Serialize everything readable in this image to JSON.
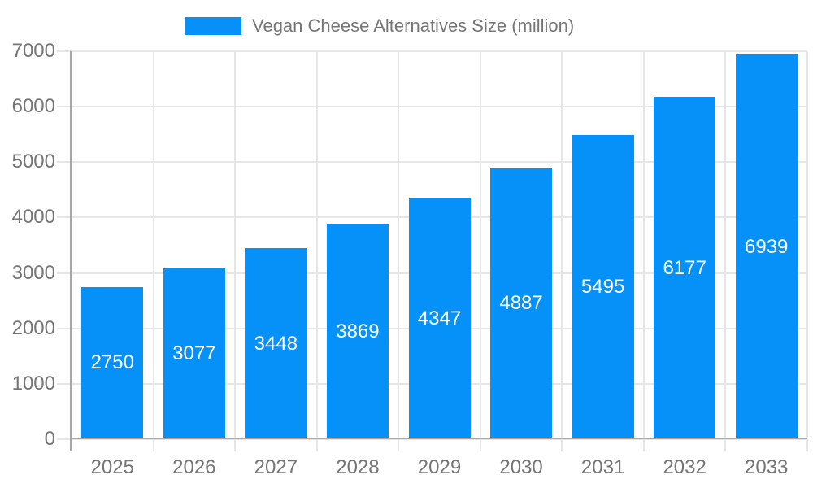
{
  "chart_data": {
    "type": "bar",
    "title": "Vegan Cheese Alternatives Size (million)",
    "categories": [
      "2025",
      "2026",
      "2027",
      "2028",
      "2029",
      "2030",
      "2031",
      "2032",
      "2033"
    ],
    "values": [
      2750,
      3077,
      3448,
      3869,
      4347,
      4887,
      5495,
      6177,
      6939
    ],
    "xlabel": "",
    "ylabel": "",
    "ylim": [
      0,
      7000
    ],
    "ytick_step": 1000,
    "yticks": [
      "0",
      "1000",
      "2000",
      "3000",
      "4000",
      "5000",
      "6000",
      "7000"
    ],
    "grid": true,
    "legend_position": "top",
    "bar_labels_visible": true,
    "colors": {
      "bar": "#0591f8",
      "bar_label": "#ffffff",
      "axis_text": "#757575",
      "gridline": "#e6e6e6",
      "axis_line": "#a6a6a6",
      "background": "#ffffff"
    }
  }
}
